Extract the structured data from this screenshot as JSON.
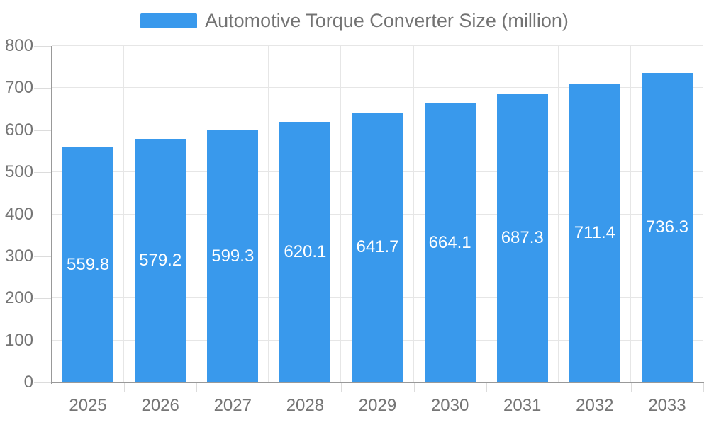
{
  "chart_data": {
    "type": "bar",
    "title": "Automotive Torque Converter Size (million)",
    "categories": [
      "2025",
      "2026",
      "2027",
      "2028",
      "2029",
      "2030",
      "2031",
      "2032",
      "2033"
    ],
    "values": [
      559.8,
      579.2,
      599.3,
      620.1,
      641.7,
      664.1,
      687.3,
      711.4,
      736.3
    ],
    "value_labels": [
      "559.8",
      "579.2",
      "599.3",
      "620.1",
      "641.7",
      "664.1",
      "687.3",
      "711.4",
      "736.3"
    ],
    "xlabel": "",
    "ylabel": "",
    "ylim": [
      0,
      800
    ],
    "ytick_step": 100,
    "ytick_labels": [
      "0",
      "100",
      "200",
      "300",
      "400",
      "500",
      "600",
      "700",
      "800"
    ],
    "grid": true,
    "legend": {
      "label": "Automotive Torque Converter Size (million)",
      "position": "top"
    },
    "colors": {
      "bar": "#3999EC",
      "value_label": "#FFFFFF",
      "axis_line": "#999999",
      "gridline": "#E6E6E6",
      "tick": "#DCDCDC",
      "text": "#757575",
      "legend_text": "#737373",
      "background": "#FFFFFF"
    }
  }
}
